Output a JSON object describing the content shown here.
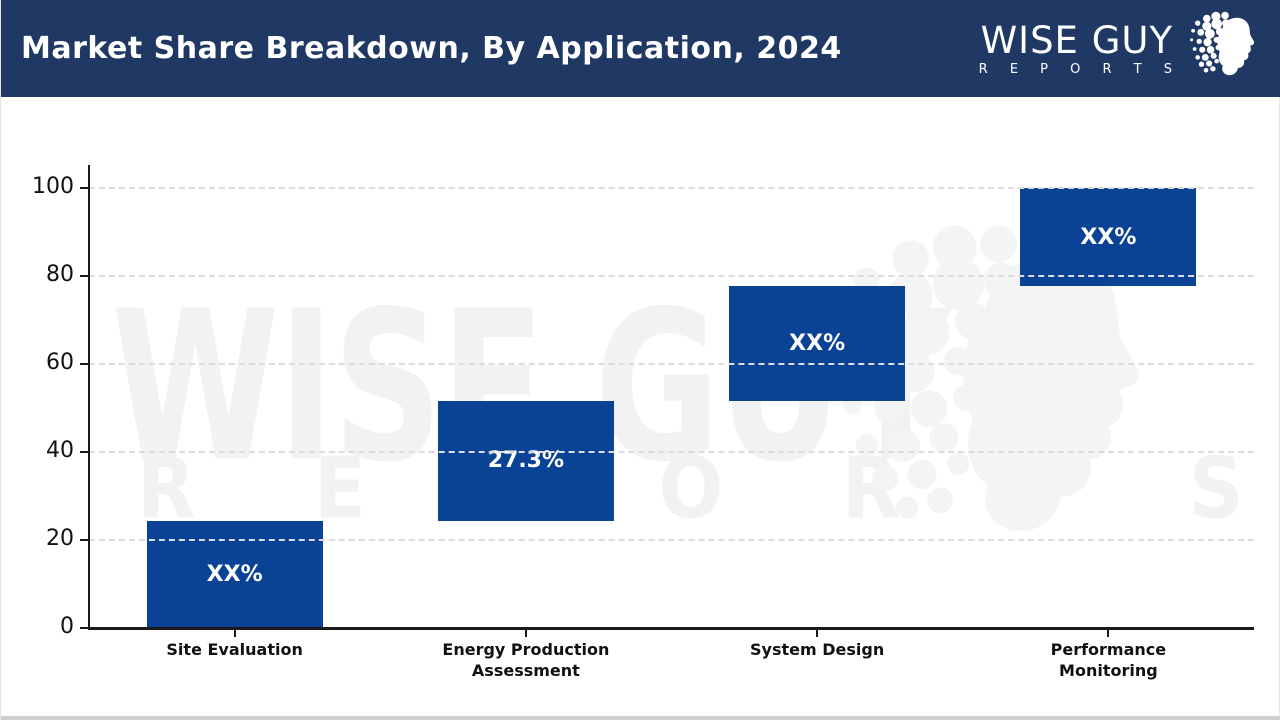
{
  "header": {
    "title": "Market Share Breakdown, By Application, 2024",
    "bg_color": "#203864",
    "logo": {
      "line1": "WISE GUY",
      "line2": "R E P O R T S"
    }
  },
  "watermark": {
    "line1": "WISE GUY",
    "line2": "R E P O R T S"
  },
  "chart_data": {
    "type": "bar",
    "variant": "floating-waterfall",
    "title": "Market Share Breakdown, By Application, 2024",
    "categories": [
      "Site Evaluation",
      "Energy Production\nAssessment",
      "System Design",
      "Performance\nMonitoring"
    ],
    "bars": [
      {
        "category": "Site Evaluation",
        "start": 0,
        "end": 24.3,
        "label": "XX%"
      },
      {
        "category": "Energy Production Assessment",
        "start": 24.4,
        "end": 51.7,
        "label": "27.3%"
      },
      {
        "category": "System Design",
        "start": 51.7,
        "end": 77.7,
        "label": "XX%"
      },
      {
        "category": "Performance Monitoring",
        "start": 77.7,
        "end": 100,
        "label": "XX%"
      }
    ],
    "xlabel": "",
    "ylabel": "",
    "ylim": [
      0,
      105
    ],
    "yticks": [
      0,
      20,
      40,
      60,
      80,
      100
    ],
    "grid": true,
    "grid_style": "dashed-horizontal",
    "legend": null,
    "colors": {
      "bar": "#0a4296",
      "bar_label": "#ffffff",
      "grid": "#dcdcdc",
      "axis": "#1a1a1a",
      "watermark": "#f2f2f2"
    }
  }
}
